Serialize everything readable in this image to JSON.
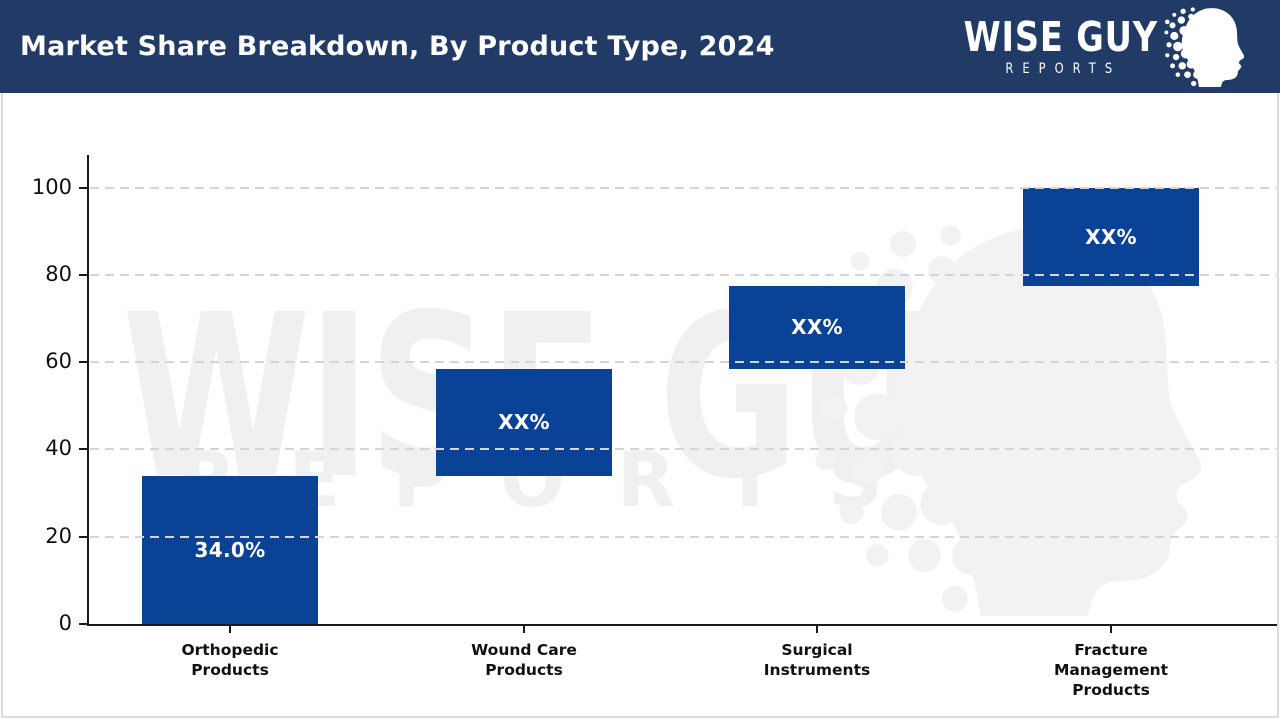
{
  "header": {
    "bg_color": "#213a66",
    "title": "Market Share Breakdown, By Product Type, 2024",
    "logo": {
      "name": "WISE GUY",
      "sub": "REPORTS"
    }
  },
  "watermark": {
    "line1": "WISE GUY",
    "line2": "REPORTS"
  },
  "chart_data": {
    "type": "bar",
    "variant": "waterfall",
    "title": "Market Share Breakdown, By Product Type, 2024",
    "xlabel": "",
    "ylabel": "",
    "ylim": [
      0,
      107
    ],
    "yticks": [
      0,
      20,
      40,
      60,
      80,
      100
    ],
    "grid": {
      "horizontal": true,
      "style": "dashed",
      "color": "#d5d5d5",
      "above_bars": true
    },
    "bar_color": "#0a4296",
    "value_label_color": "#ffffff",
    "categories": [
      "Orthopedic Products",
      "Wound Care Products",
      "Surgical Instruments",
      "Fracture Management Products"
    ],
    "segments": [
      {
        "category": "Orthopedic Products",
        "start": 0,
        "end": 34,
        "delta": 34,
        "value_label": "34.0%"
      },
      {
        "category": "Wound Care Products",
        "start": 34,
        "end": 58.5,
        "delta": 24.5,
        "value_label": "XX%"
      },
      {
        "category": "Surgical Instruments",
        "start": 58.5,
        "end": 77.5,
        "delta": 19,
        "value_label": "XX%"
      },
      {
        "category": "Fracture Management Products",
        "start": 77.5,
        "end": 100,
        "delta": 22.5,
        "value_label": "XX%"
      }
    ]
  }
}
